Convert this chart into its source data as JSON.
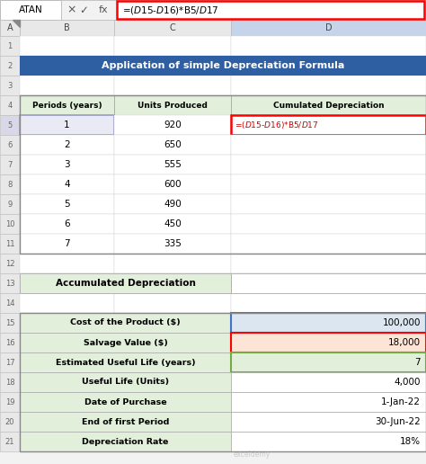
{
  "title": "Application of simple Depreciation Formula",
  "title_bg": "#2E5FA3",
  "title_fg": "#FFFFFF",
  "formula_bar_text": "=($D$15-$D$16)*B5/$D$17",
  "formula_bar_border": "#FF0000",
  "cell_ref": "ATAN",
  "col_headers": [
    "A",
    "B",
    "C",
    "D"
  ],
  "table1_header": [
    "Periods (years)",
    "Units Produced",
    "Cumulated Depreciation"
  ],
  "table1_header_bg": "#E2EFDA",
  "table1_data": [
    [
      1,
      920
    ],
    [
      2,
      650
    ],
    [
      3,
      555
    ],
    [
      4,
      600
    ],
    [
      5,
      490
    ],
    [
      6,
      450
    ],
    [
      7,
      335
    ]
  ],
  "table1_formula_cell": "=($D$15-$D$16)*B5/$D$17",
  "row5_col_b_bg": "#EAEAF5",
  "row5_col_b_border": "#9999CC",
  "row13_label": "Accumulated Depreciation",
  "row13_bg": "#E2EFDA",
  "table2_data": [
    [
      "Cost of the Product ($)",
      "100,000"
    ],
    [
      "Salvage Value ($)",
      "18,000"
    ],
    [
      "Estimated Useful Life (years)",
      "7"
    ],
    [
      "Useful Life (Units)",
      "4,000"
    ],
    [
      "Date of Purchase",
      "1-Jan-22"
    ],
    [
      "End of first Period",
      "30-Jun-22"
    ],
    [
      "Depreciation Rate",
      "18%"
    ]
  ],
  "table2_label_bg": "#E2EFDA",
  "row15_value_bg": "#DCE6F1",
  "row15_value_border": "#4472C4",
  "row16_value_bg": "#FCE4D6",
  "row16_value_border": "#FF0000",
  "row17_value_bg": "#E2EFDA",
  "row17_value_border": "#70AD47",
  "bg_color": "#F2F2F2",
  "cell_bg": "#FFFFFF",
  "grid_color": "#D0D0D0",
  "col_header_bg": "#E8E8E8",
  "row_header_bg": "#F2F2F2",
  "row_header_text": "#666666",
  "col_a_selected_bg": "#C5D4E8",
  "watermark": "exceldemy"
}
